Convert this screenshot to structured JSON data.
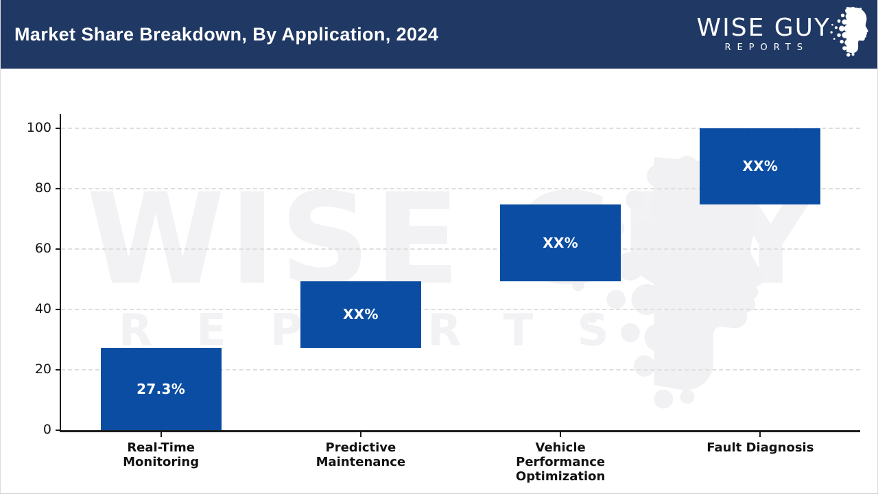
{
  "header": {
    "title": "Market Share Breakdown, By Application, 2024",
    "bg_color": "#1f3864",
    "logo": {
      "wordmark": "WISE GUY",
      "subtext": "REPORTS"
    }
  },
  "watermark": {
    "wordmark": "WISE GUY",
    "subtext": "REPORTS"
  },
  "chart_data": {
    "type": "bar",
    "subtype": "waterfall",
    "title": "Market Share Breakdown, By Application, 2024",
    "categories": [
      "Real-Time\nMonitoring",
      "Predictive\nMaintenance",
      "Vehicle\nPerformance\nOptimization",
      "Fault Diagnosis"
    ],
    "segments": [
      {
        "from": 0,
        "to": 27.3,
        "label": "27.3%"
      },
      {
        "from": 27.3,
        "to": 49.4,
        "label": "XX%"
      },
      {
        "from": 49.4,
        "to": 74.8,
        "label": "XX%"
      },
      {
        "from": 74.8,
        "to": 100,
        "label": "XX%"
      }
    ],
    "increments": [
      27.3,
      22.1,
      25.4,
      25.2
    ],
    "yticks": [
      0,
      20,
      40,
      60,
      80,
      100
    ],
    "ylim": [
      0,
      105
    ],
    "xlabel": "",
    "ylabel": "",
    "legend": null,
    "grid": "horizontal-dashed",
    "grid_color": "#dedede",
    "bar_color": "#0b4da2",
    "bar_label_color": "#ffffff",
    "axis_color": "#1a1a1a"
  }
}
